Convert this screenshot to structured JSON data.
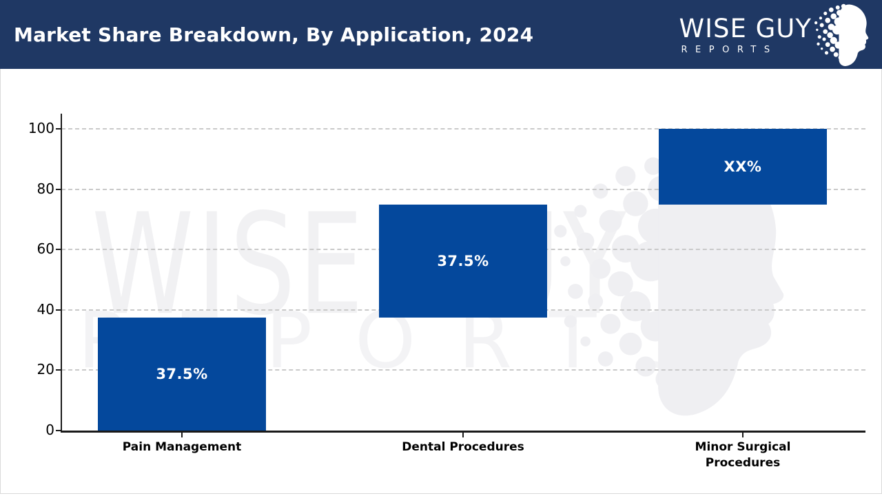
{
  "header": {
    "title": "Market Share Breakdown, By Application, 2024",
    "bg_color": "#1f3864",
    "logo": {
      "line1": "WISE GUY",
      "line2": "REPORTS"
    }
  },
  "watermark": {
    "line1": "WISE GUY",
    "line2": "REPORTS",
    "color": "#f1f1f3"
  },
  "chart_data": {
    "type": "bar",
    "subtype": "waterfall",
    "title": "Market Share Breakdown, By Application, 2024",
    "categories": [
      "Pain Management",
      "Dental Procedures",
      "Minor Surgical Procedures"
    ],
    "series": [
      {
        "name": "Market Share (%)",
        "segments": [
          {
            "category": "Pain Management",
            "start": 0,
            "end": 37.5,
            "label": "37.5%"
          },
          {
            "category": "Dental Procedures",
            "start": 37.5,
            "end": 75,
            "label": "37.5%"
          },
          {
            "category": "Minor Surgical Procedures",
            "start": 75,
            "end": 100,
            "label": "XX%"
          }
        ]
      }
    ],
    "yticks": [
      0,
      20,
      40,
      60,
      80,
      100
    ],
    "ylim": [
      0,
      105
    ],
    "xlabel": "",
    "ylabel": "",
    "grid": "horizontal-dashed",
    "legend": "none",
    "bar_color": "#04489c",
    "bar_label_color": "#ffffff",
    "grid_color": "#c9c9c9",
    "axis_color": "#1a1a1a"
  }
}
